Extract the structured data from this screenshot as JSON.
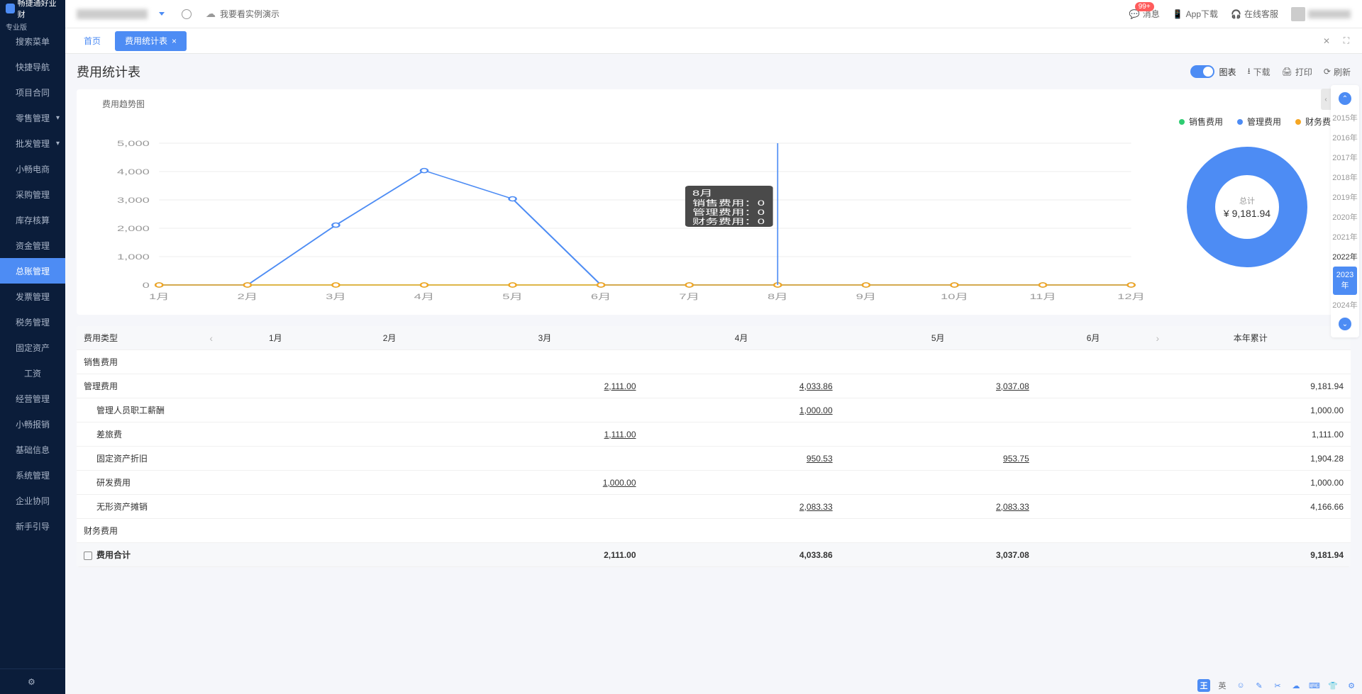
{
  "brand": {
    "name": "畅捷通好业财",
    "edition": "专业版"
  },
  "header": {
    "demo": "我要看实例演示",
    "messages": "消息",
    "badge": "99+",
    "appDownload": "App下载",
    "support": "在线客服"
  },
  "sidebar": {
    "items": [
      {
        "label": "搜索菜单",
        "active": false
      },
      {
        "label": "快捷导航",
        "active": false
      },
      {
        "label": "项目合同",
        "active": false
      },
      {
        "label": "零售管理",
        "active": false,
        "caret": true
      },
      {
        "label": "批发管理",
        "active": false,
        "caret": true
      },
      {
        "label": "小畅电商",
        "active": false
      },
      {
        "label": "采购管理",
        "active": false
      },
      {
        "label": "库存核算",
        "active": false
      },
      {
        "label": "资金管理",
        "active": false
      },
      {
        "label": "总账管理",
        "active": true
      },
      {
        "label": "发票管理",
        "active": false
      },
      {
        "label": "税务管理",
        "active": false
      },
      {
        "label": "固定资产",
        "active": false
      },
      {
        "label": "工资",
        "active": false
      },
      {
        "label": "经营管理",
        "active": false
      },
      {
        "label": "小畅报销",
        "active": false
      },
      {
        "label": "基础信息",
        "active": false
      },
      {
        "label": "系统管理",
        "active": false
      },
      {
        "label": "企业协同",
        "active": false
      },
      {
        "label": "新手引导",
        "active": false
      }
    ]
  },
  "tabs": {
    "home": "首页",
    "active": "费用统计表"
  },
  "page": {
    "title": "费用统计表",
    "chartToggle": "图表",
    "download": "下载",
    "print": "打印",
    "refresh": "刷新"
  },
  "chart": {
    "title": "费用趋势图",
    "legend": [
      {
        "label": "销售费用",
        "color": "#2ecc71"
      },
      {
        "label": "管理费用",
        "color": "#4d8cf4"
      },
      {
        "label": "财务费用",
        "color": "#f5a623"
      }
    ],
    "yticks": [
      0,
      1000,
      2000,
      3000,
      4000,
      5000
    ],
    "yTickLabels": [
      "0",
      "1,000",
      "2,000",
      "3,000",
      "4,000",
      "5,000"
    ],
    "xlabels": [
      "1月",
      "2月",
      "3月",
      "4月",
      "5月",
      "6月",
      "7月",
      "8月",
      "9月",
      "10月",
      "11月",
      "12月"
    ],
    "ylim": [
      0,
      5000
    ],
    "series": {
      "sales": [
        0,
        0,
        0,
        0,
        0,
        0,
        0,
        0,
        0,
        0,
        0,
        0
      ],
      "mgmt": [
        0,
        0,
        2111,
        4034,
        3037,
        0,
        0,
        0,
        0,
        0,
        0,
        0
      ],
      "finance": [
        0,
        0,
        0,
        0,
        0,
        0,
        0,
        0,
        0,
        0,
        0,
        0
      ]
    },
    "tooltip": {
      "month": "8月",
      "lines": [
        "销售费用：0",
        "管理费用：0",
        "财务费用：0"
      ]
    },
    "hoverIndex": 7,
    "grid_color": "#eeeeee",
    "background_color": "#ffffff"
  },
  "donut": {
    "label": "总计",
    "value": "¥ 9,181.94",
    "color": "#4d8cf4",
    "background": "#e6effd"
  },
  "years": {
    "list": [
      "2015年",
      "2016年",
      "2017年",
      "2018年",
      "2019年",
      "2020年",
      "2021年",
      "2022年",
      "2023年",
      "2024年"
    ],
    "dark": "2022年",
    "active": "2023年"
  },
  "table": {
    "headers": [
      "费用类型",
      "1月",
      "2月",
      "3月",
      "4月",
      "5月",
      "6月",
      "本年累计"
    ],
    "rows": [
      {
        "name": "销售费用",
        "indent": 0,
        "cells": [
          "",
          "",
          "",
          "",
          "",
          "",
          ""
        ]
      },
      {
        "name": "管理费用",
        "indent": 0,
        "cells": [
          "",
          "",
          "2,111.00",
          "4,033.86",
          "3,037.08",
          "",
          "9,181.94"
        ],
        "link": [
          2,
          3,
          4
        ]
      },
      {
        "name": "管理人员职工薪酬",
        "indent": 1,
        "cells": [
          "",
          "",
          "",
          "1,000.00",
          "",
          "",
          "1,000.00"
        ],
        "link": [
          3
        ]
      },
      {
        "name": "差旅费",
        "indent": 1,
        "cells": [
          "",
          "",
          "1,111.00",
          "",
          "",
          "",
          "1,111.00"
        ],
        "link": [
          2
        ]
      },
      {
        "name": "固定资产折旧",
        "indent": 1,
        "cells": [
          "",
          "",
          "",
          "950.53",
          "953.75",
          "",
          "1,904.28"
        ],
        "link": [
          3,
          4
        ]
      },
      {
        "name": "研发费用",
        "indent": 1,
        "cells": [
          "",
          "",
          "1,000.00",
          "",
          "",
          "",
          "1,000.00"
        ],
        "link": [
          2
        ]
      },
      {
        "name": "无形资产摊销",
        "indent": 1,
        "cells": [
          "",
          "",
          "",
          "2,083.33",
          "2,083.33",
          "",
          "4,166.66"
        ],
        "link": [
          3,
          4
        ]
      },
      {
        "name": "财务费用",
        "indent": 0,
        "cells": [
          "",
          "",
          "",
          "",
          "",
          "",
          ""
        ]
      }
    ],
    "total": {
      "name": "费用合计",
      "cells": [
        "",
        "",
        "2,111.00",
        "4,033.86",
        "3,037.08",
        "",
        "9,181.94"
      ]
    }
  },
  "taskbar": {
    "ime": "英"
  }
}
